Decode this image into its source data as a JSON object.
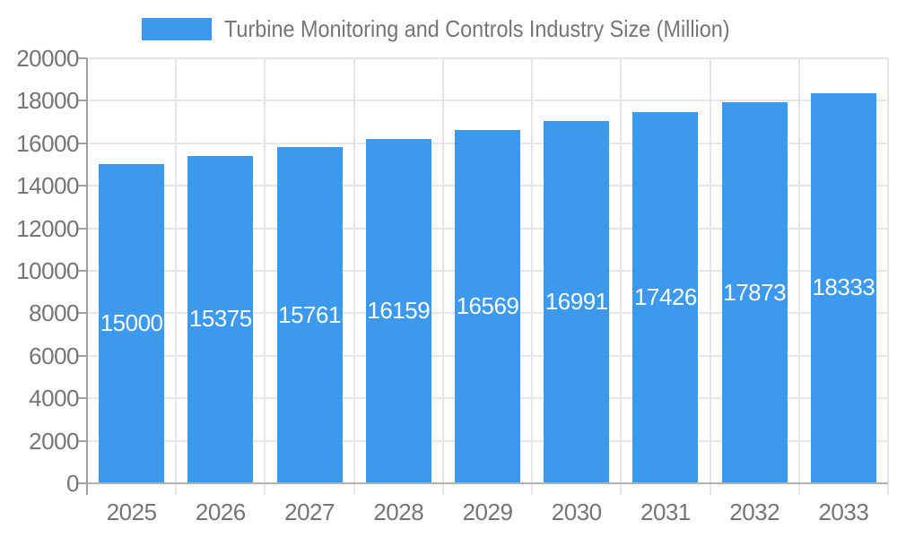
{
  "legend": {
    "swatch_color": "#3C99EE"
  },
  "chart_data": {
    "type": "bar",
    "title": "Turbine Monitoring and Controls Industry Size (Million)",
    "categories": [
      "2025",
      "2026",
      "2027",
      "2028",
      "2029",
      "2030",
      "2031",
      "2032",
      "2033"
    ],
    "values": [
      15000,
      15375,
      15761,
      16159,
      16569,
      16991,
      17426,
      17873,
      18333
    ],
    "value_labels": [
      "15000",
      "15375",
      "15761",
      "16159",
      "16569",
      "16991",
      "17426",
      "17873",
      "18333"
    ],
    "xlabel": "",
    "ylabel": "",
    "ylim": [
      0,
      20000
    ],
    "ytick_step": 2000,
    "yticks": [
      0,
      2000,
      4000,
      6000,
      8000,
      10000,
      12000,
      14000,
      16000,
      18000,
      20000
    ],
    "grid": true,
    "legend_position": "top",
    "colors": {
      "bar": "#3C99EE",
      "axis_text": "#757575",
      "title_text": "#757575",
      "value_label": "#ffffff",
      "gridline": "#e6e6e6",
      "axis_line": "#9e9e9e",
      "baseline": "#b2b2b2",
      "y_tick_dash": "#a3a3a3"
    }
  }
}
